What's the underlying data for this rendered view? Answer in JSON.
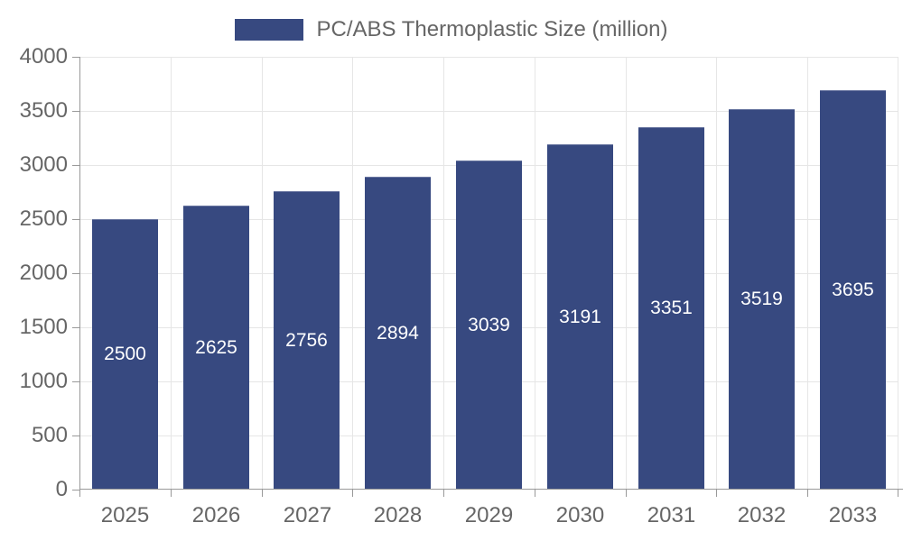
{
  "chart_data": {
    "type": "bar",
    "title": "",
    "legend": {
      "label": "PC/ABS Thermoplastic Size (million)",
      "position": "top"
    },
    "categories": [
      "2025",
      "2026",
      "2027",
      "2028",
      "2029",
      "2030",
      "2031",
      "2032",
      "2033"
    ],
    "values": [
      2500,
      2625,
      2756,
      2894,
      3039,
      3191,
      3351,
      3519,
      3695
    ],
    "series": [
      {
        "name": "PC/ABS Thermoplastic Size (million)",
        "values": [
          2500,
          2625,
          2756,
          2894,
          3039,
          3191,
          3351,
          3519,
          3695
        ]
      }
    ],
    "xlabel": "",
    "ylabel": "",
    "ylim": [
      0,
      4000
    ],
    "ytick_step": 500,
    "yticks": [
      0,
      500,
      1000,
      1500,
      2000,
      2500,
      3000,
      3500,
      4000
    ],
    "grid": true,
    "bar_value_labels_inside": true,
    "colors": {
      "bar": "#374980",
      "bar_label": "#ffffff",
      "axis": "#999999",
      "grid": "#e6e6e6",
      "tick_text": "#666666"
    }
  }
}
